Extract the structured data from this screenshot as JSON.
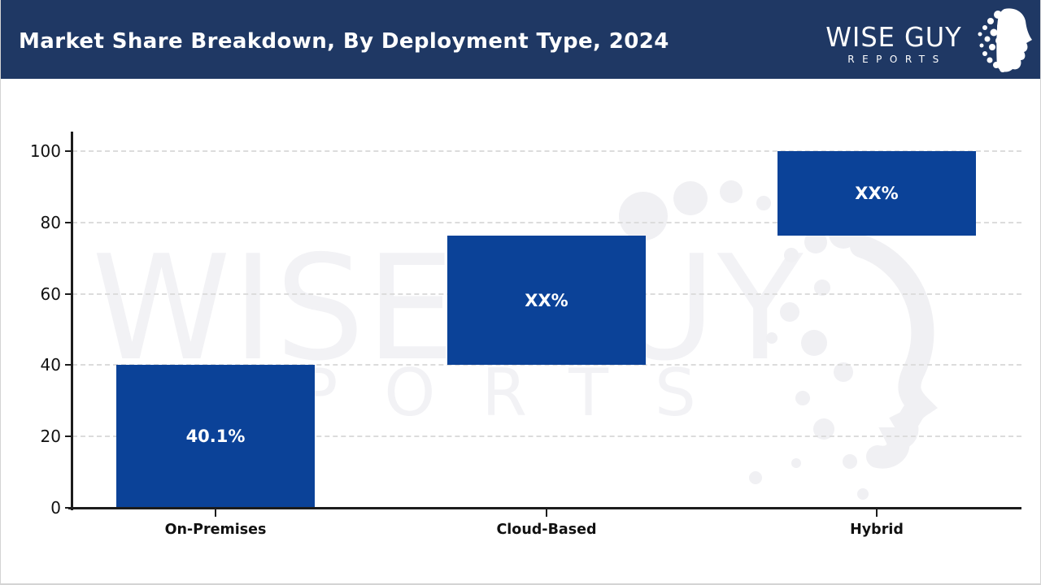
{
  "header": {
    "title": "Market Share Breakdown, By Deployment Type, 2024",
    "logo": {
      "brand_top": "WISE GUY",
      "brand_bottom": "REPORTS"
    }
  },
  "watermark": {
    "word1": "WISE GUY",
    "word2": "REPORTS"
  },
  "chart_data": {
    "type": "bar",
    "variant": "waterfall",
    "title": "Market Share Breakdown, By Deployment Type, 2024",
    "categories": [
      "On-Premises",
      "Cloud-Based",
      "Hybrid"
    ],
    "segments": [
      {
        "category": "On-Premises",
        "start": 0,
        "end": 40.1,
        "label": "40.1%"
      },
      {
        "category": "Cloud-Based",
        "start": 40.1,
        "end": 76.3,
        "label": "XX%"
      },
      {
        "category": "Hybrid",
        "start": 76.3,
        "end": 100,
        "label": "XX%"
      }
    ],
    "xlabel": "",
    "ylabel": "",
    "ylim": [
      0,
      105
    ],
    "yticks": [
      0,
      20,
      40,
      60,
      80,
      100
    ],
    "grid": "horizontal-dashed",
    "legend": "none",
    "bar_color": "#0b4298",
    "bar_label_colors": [
      "#ffffff",
      "#ffffff",
      "#ffffff"
    ]
  },
  "colors": {
    "header_bg": "#1f3864",
    "bar": "#0b4298",
    "axis": "#1c1c1c",
    "grid": "#dcdcdc",
    "watermark": "#f2f2f5"
  }
}
